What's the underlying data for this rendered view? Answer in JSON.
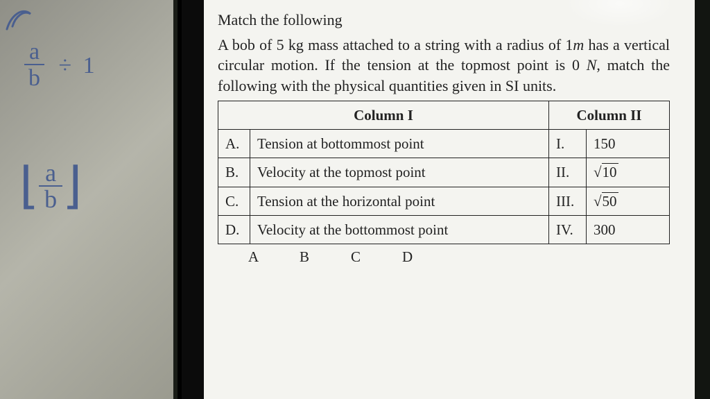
{
  "handwriting": {
    "frac_num": "a",
    "frac_den": "b",
    "eq": "÷ 1",
    "box_num": "a",
    "box_den": "b"
  },
  "question": {
    "lead": "Match the following",
    "body_pre": "A bob of 5 kg mass attached to a string with a radius of 1",
    "body_unit": "m",
    "body_mid": " has a vertical circular motion. If the tension at the topmost point is 0 ",
    "body_n": "N",
    "body_after": ", match the following with the physical quantities given in SI units."
  },
  "table": {
    "col1_header": "Column I",
    "col2_header": "Column II",
    "rows": [
      {
        "a": "A.",
        "desc": "Tension at bottommost point",
        "num": "I.",
        "val_type": "plain",
        "val": "150"
      },
      {
        "a": "B.",
        "desc": "Velocity at the topmost point",
        "num": "II.",
        "val_type": "sqrt",
        "val": "10"
      },
      {
        "a": "C.",
        "desc": "Tension at the horizontal point",
        "num": "III.",
        "val_type": "sqrt",
        "val": "50"
      },
      {
        "a": "D.",
        "desc": "Velocity at the bottommost point",
        "num": "IV.",
        "val_type": "plain",
        "val": "300"
      }
    ]
  },
  "footer": {
    "a": "A",
    "b": "B",
    "c": "C",
    "d": "D"
  },
  "colors": {
    "ink": "#222222",
    "paper": "#f4f4f0",
    "pen": "#4a5f8f",
    "desk": "#9a9a8f",
    "frame": "#0b0b0b"
  }
}
